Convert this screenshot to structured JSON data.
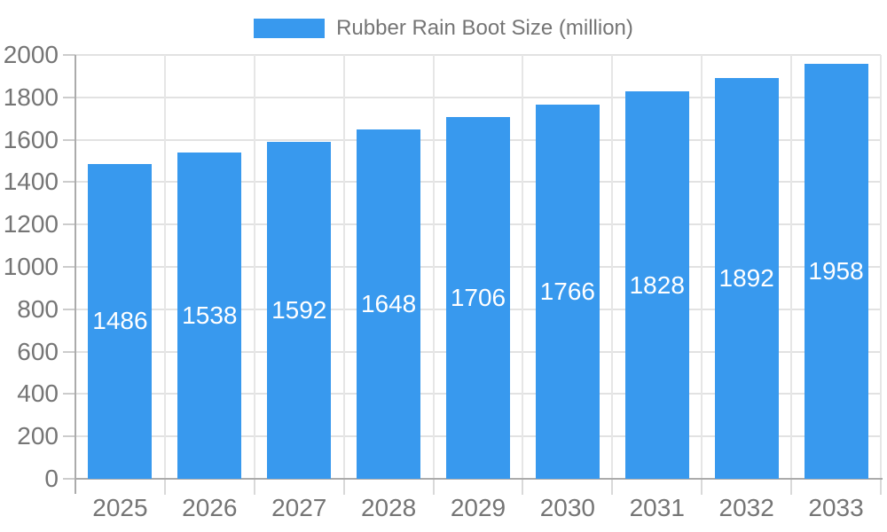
{
  "legend": {
    "label": "Rubber Rain Boot Size (million)",
    "position": "top"
  },
  "chart_data": {
    "type": "bar",
    "title": "Rubber Rain Boot Size (million)",
    "categories": [
      "2025",
      "2026",
      "2027",
      "2028",
      "2029",
      "2030",
      "2031",
      "2032",
      "2033"
    ],
    "series": [
      {
        "name": "Rubber Rain Boot Size (million)",
        "values": [
          1486,
          1538,
          1592,
          1648,
          1706,
          1766,
          1828,
          1892,
          1958
        ]
      }
    ],
    "xlabel": "",
    "ylabel": "",
    "ylim": [
      0,
      2000
    ],
    "ytick_step": 200,
    "ytick_labels": [
      "0",
      "200",
      "400",
      "600",
      "800",
      "1000",
      "1200",
      "1400",
      "1600",
      "1800",
      "2000"
    ],
    "grid": true,
    "bar_value_labels_visible": true,
    "legend_position": "top"
  },
  "colors": {
    "bar": "#3899EE",
    "bar_label": "#FFFFFF",
    "axis_text": "#757575",
    "legend_text": "#757575",
    "h_gridline": "#E2E2E2",
    "v_gridline": "#E6E6E6",
    "axis_line": "#ABABAB",
    "y_tick": "#CCCCCC",
    "x_tick": "#D9D9D9",
    "background": "#FFFFFF"
  }
}
